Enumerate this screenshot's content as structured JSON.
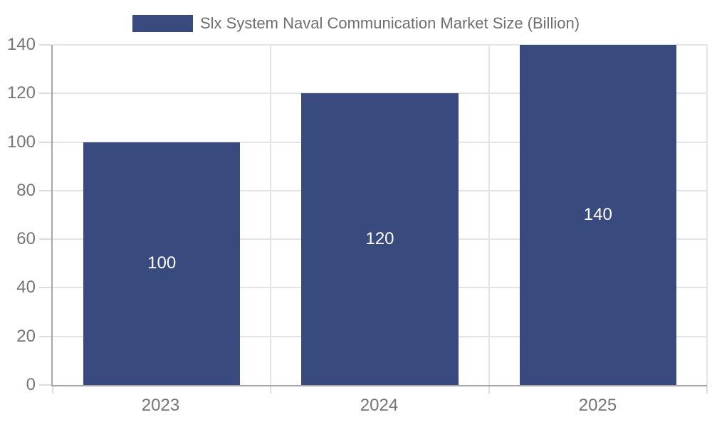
{
  "chart_data": {
    "type": "bar",
    "title": "Slx System Naval Communication Market Size (Billion)",
    "categories": [
      "2023",
      "2024",
      "2025"
    ],
    "values": [
      100,
      120,
      140
    ],
    "series": [
      {
        "name": "Slx System Naval Communication Market Size (Billion)",
        "values": [
          100,
          120,
          140
        ]
      }
    ],
    "bar_value_labels": [
      "100",
      "120",
      "140"
    ],
    "xlabel": "",
    "ylabel": "",
    "ylim": [
      0,
      140
    ],
    "yticks": [
      0,
      20,
      40,
      60,
      80,
      100,
      120,
      140
    ],
    "grid": true,
    "legend_position": "top-center",
    "bar_width_fraction": 0.72,
    "colors": {
      "bar": "#394A7E",
      "grid": "#E4E4E4",
      "axis": "#A6A6A6",
      "tick_label": "#757575",
      "legend_text": "#6E6E6E",
      "bar_label": "#FFFFFF",
      "background": "#FFFFFF"
    }
  }
}
